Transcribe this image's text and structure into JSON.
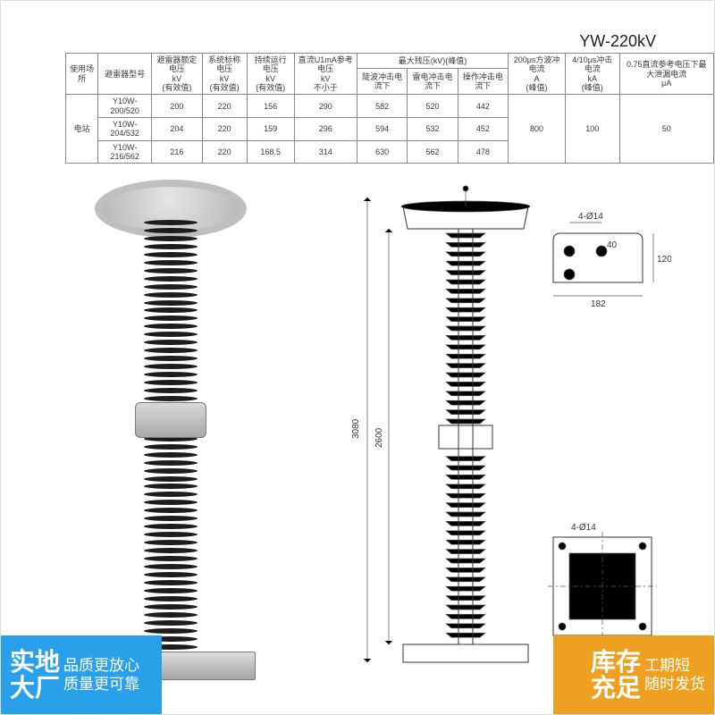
{
  "title": "YW-220kV",
  "table": {
    "header_row1": [
      "使用场所",
      "避雷器型号",
      "避雷器额定电压\nkV\n(有效值)",
      "系统标称电压\nkV\n(有效值)",
      "持续运行电压\nkV\n(有效值)",
      "直流U1mA参考电压\nkV\n不小于",
      "最大残压(kV)(峰值)",
      "200μs方波冲电流\nA\n(峰值)",
      "4/10μs冲击电流\nkA\n(峰值)",
      "0.75直流参考电压下最大泄漏电流\nμA"
    ],
    "header_row2_span": [
      "陡波冲击电流下",
      "雷电冲击电流下",
      "操作冲击电流下"
    ],
    "rows": [
      [
        "电站",
        "Y10W-200/520",
        "200",
        "220",
        "156",
        "290",
        "582",
        "520",
        "442",
        "800",
        "100",
        "50"
      ],
      [
        "",
        "Y10W-204/532",
        "204",
        "220",
        "159",
        "296",
        "594",
        "532",
        "452",
        "",
        "",
        ""
      ],
      [
        "",
        "Y10W-216/562",
        "216",
        "220",
        "168.5",
        "314",
        "630",
        "562",
        "478",
        "",
        "",
        ""
      ]
    ]
  },
  "drawing": {
    "overall_height": "3080",
    "inner_height": "2600",
    "bracket_w": "182",
    "bracket_h": "120",
    "bracket_hole_offset": "40",
    "hole_note_top": "4-Ø14",
    "hole_note_bottom": "4-Ø14"
  },
  "badges": {
    "left_big": "实地\n大厂",
    "left_small": "品质更放心\n质量更可靠",
    "right_big": "库存\n充足",
    "right_small": "工期短\n随时发货"
  },
  "style": {
    "bg": "#ffffff",
    "badge_left_bg": "#2aa0ea",
    "badge_right_bg": "#f0a020",
    "line": "#333333"
  }
}
